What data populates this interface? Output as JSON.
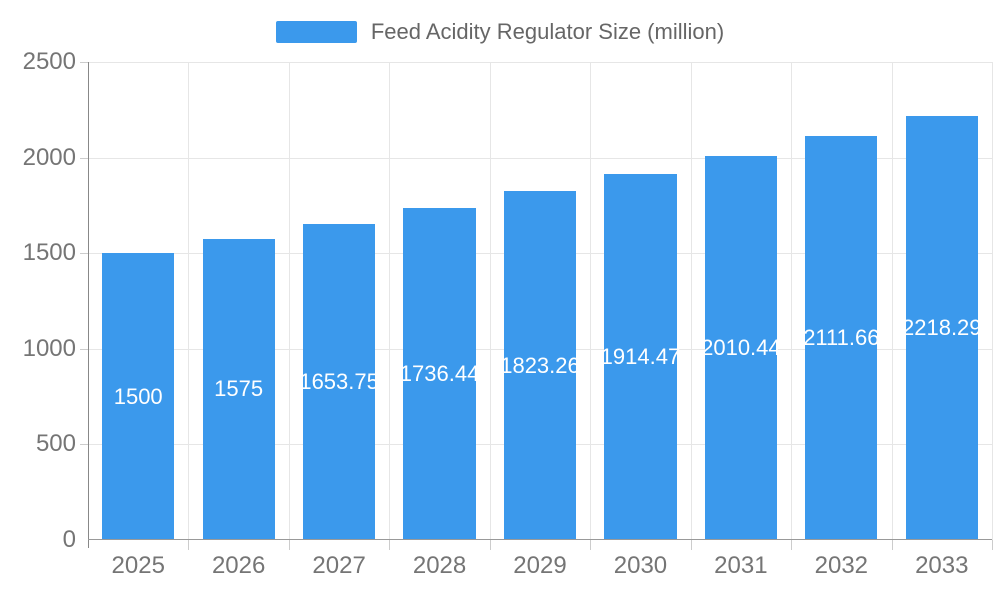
{
  "legend": {
    "label": "Feed Acidity Regulator Size (million)"
  },
  "colors": {
    "bar": "#3B99EC",
    "bar_label_text": "#FFFFFF",
    "legend_text": "#666666",
    "tick_text": "#757575",
    "axis_line": "#888888",
    "grid_line": "#E6E6E6",
    "background": "#FFFFFF"
  },
  "chart_data": {
    "type": "bar",
    "title": "Feed Acidity Regulator Size (million)",
    "legend_position": "top",
    "grid": true,
    "categories": [
      "2025",
      "2026",
      "2027",
      "2028",
      "2029",
      "2030",
      "2031",
      "2032",
      "2033"
    ],
    "series": [
      {
        "name": "Feed Acidity Regulator Size (million)",
        "values": [
          1500,
          1575,
          1653.75,
          1736.44,
          1823.26,
          1914.47,
          2010.44,
          2111.66,
          2218.29
        ],
        "value_labels": [
          "1500",
          "1575",
          "1653.75",
          "1736.44",
          "1823.26",
          "1914.47",
          "2010.44",
          "2111.66",
          "2218.29"
        ],
        "color": "#3B99EC"
      }
    ],
    "xlabel": "",
    "ylabel": "",
    "ylim": [
      0,
      2500
    ],
    "yticks": [
      0,
      500,
      1000,
      1500,
      2000,
      2500
    ],
    "bar_label_position": "center"
  }
}
